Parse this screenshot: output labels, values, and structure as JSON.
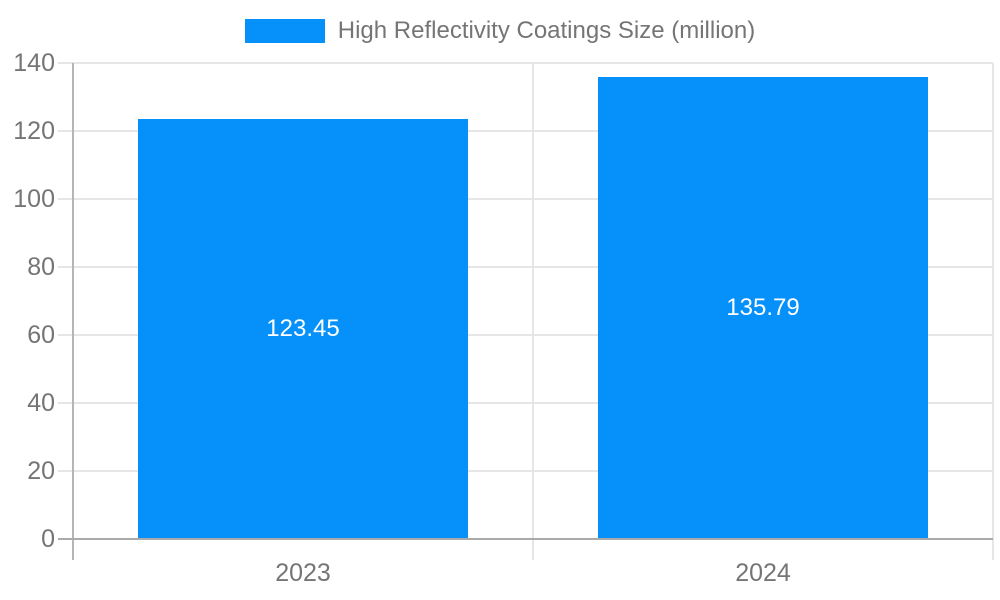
{
  "chart_data": {
    "type": "bar",
    "title": "High Reflectivity Coatings Size (million)",
    "categories": [
      "2023",
      "2024"
    ],
    "values": [
      123.45,
      135.79
    ],
    "value_labels": [
      "123.45",
      "135.79"
    ],
    "ylim": [
      0,
      140
    ],
    "yticks": [
      0,
      20,
      40,
      60,
      80,
      100,
      120,
      140
    ],
    "grid": true,
    "legend": {
      "position": "top-center",
      "label": "High Reflectivity Coatings Size (million)"
    },
    "colors": {
      "bar": "#0690fa",
      "bar_label_text": "#ffffff",
      "axis_text": "#757575",
      "gridline": "#e6e6e6",
      "x_axis_line": "#aaaaaa",
      "y_axis_line": "#b5b5b5",
      "background": "#ffffff"
    }
  }
}
